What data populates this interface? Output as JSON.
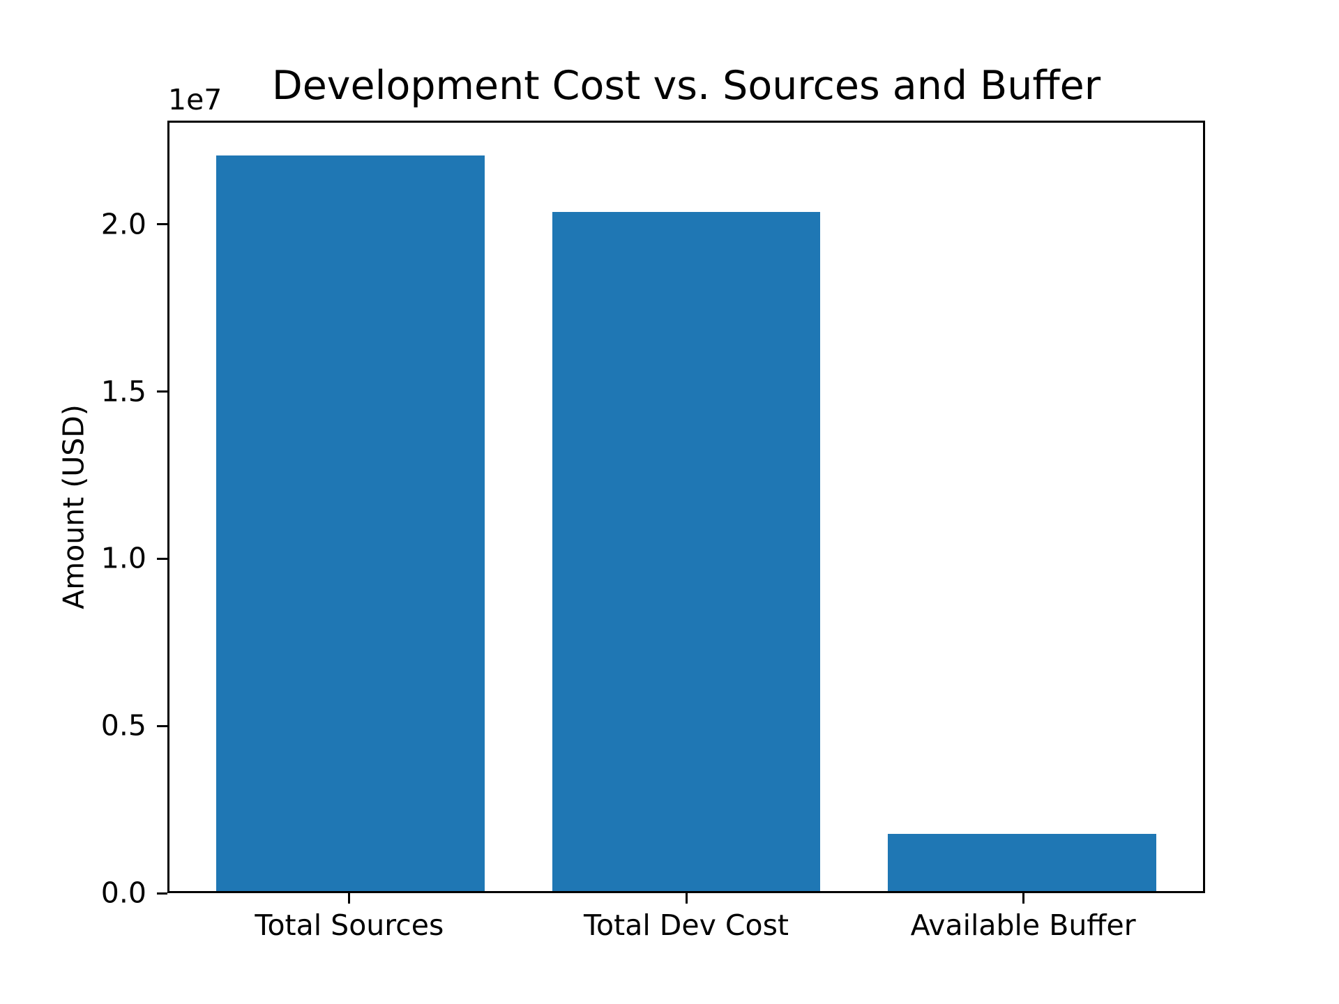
{
  "figure": {
    "background_color": "#ffffff",
    "text_color": "#000000",
    "spine_color": "#000000"
  },
  "chart_data": {
    "type": "bar",
    "title": "Development Cost vs. Sources and Buffer",
    "categories": [
      "Total Sources",
      "Total Dev Cost",
      "Available Buffer"
    ],
    "values": [
      22000000,
      20300000,
      1700000
    ],
    "xlabel": "",
    "ylabel": "Amount (USD)",
    "ylim": [
      0,
      23100000
    ],
    "yticks": [
      0,
      5000000,
      10000000,
      15000000,
      20000000
    ],
    "ytick_labels": [
      "0.0",
      "0.5",
      "1.0",
      "1.5",
      "2.0"
    ],
    "offset_text": "1e7",
    "bar_color": "#1f77b4",
    "grid": false,
    "legend": null
  }
}
